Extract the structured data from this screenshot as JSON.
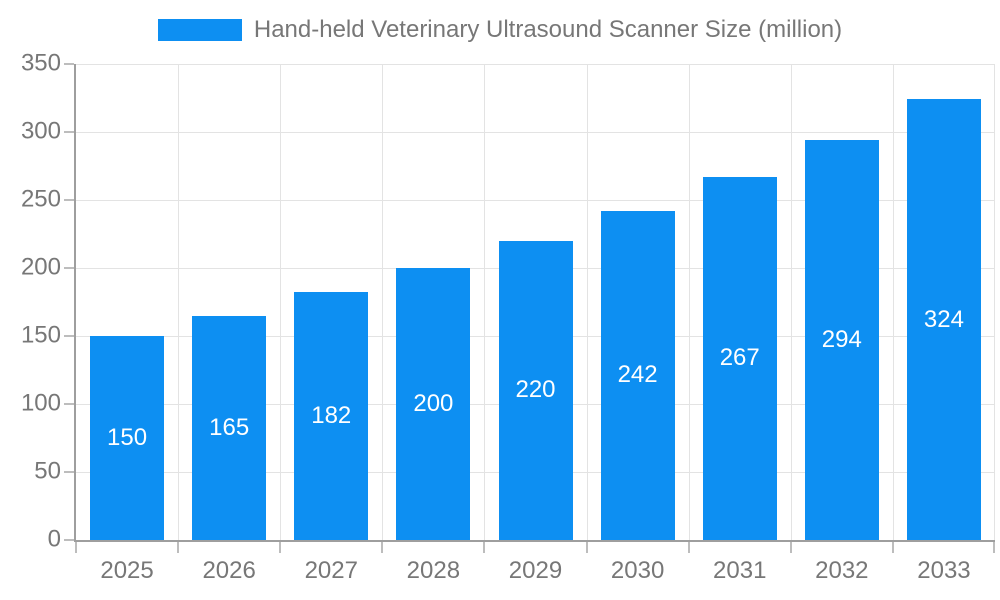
{
  "chart_data": {
    "type": "bar",
    "title": "Hand-held Veterinary Ultrasound Scanner Size (million)",
    "categories": [
      "2025",
      "2026",
      "2027",
      "2028",
      "2029",
      "2030",
      "2031",
      "2032",
      "2033"
    ],
    "values": [
      150,
      165,
      182,
      200,
      220,
      242,
      267,
      294,
      324
    ],
    "xlabel": "",
    "ylabel": "",
    "ylim": [
      0,
      350
    ],
    "ytick_step": 50,
    "yticks": [
      0,
      50,
      100,
      150,
      200,
      250,
      300,
      350
    ],
    "grid": "on",
    "legend_position": "top-center",
    "value_labels": "inside-center",
    "colors": {
      "bar": "#0d8ff2",
      "grid": "#e3e3e3",
      "axis": "#9e9e9e",
      "tick": "#bdbdbd",
      "text": "#777777",
      "value_label": "#ffffff"
    }
  }
}
